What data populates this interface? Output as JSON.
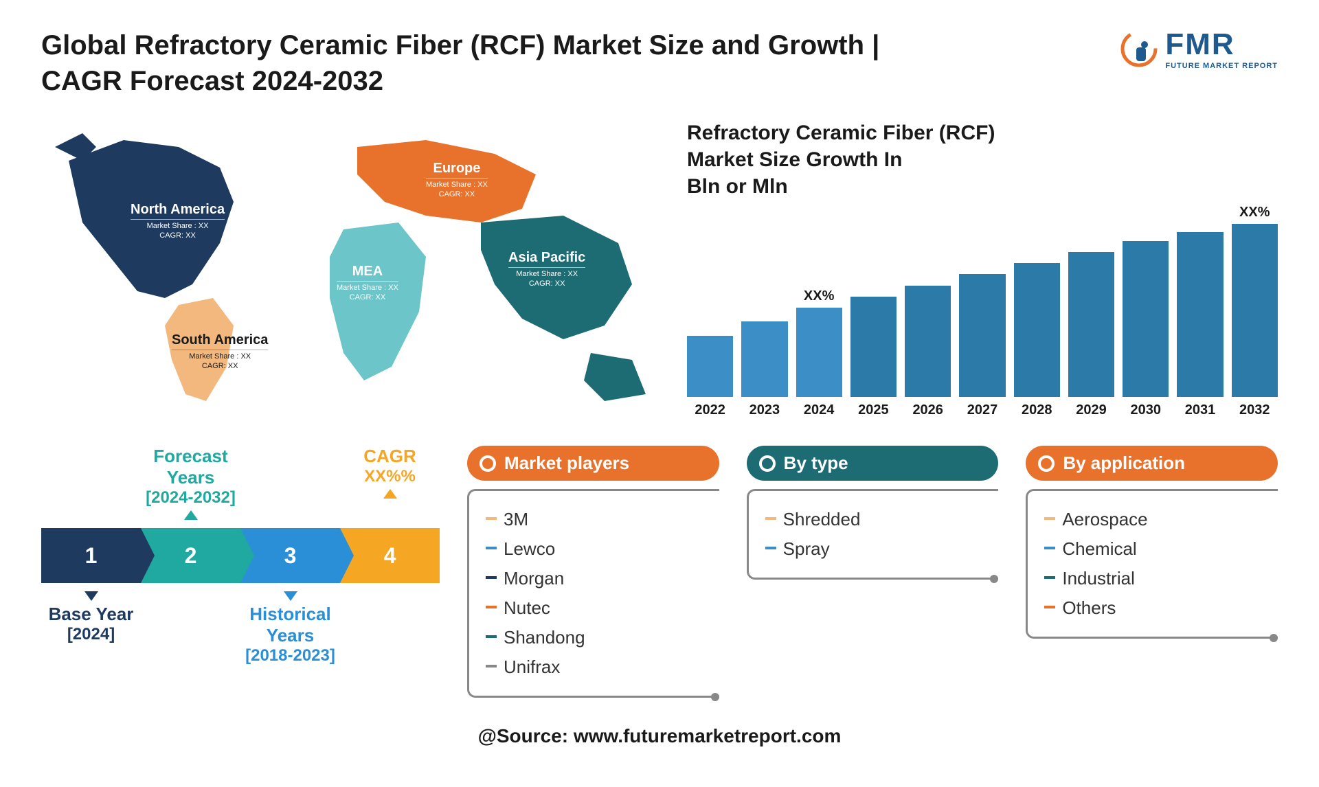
{
  "header": {
    "title": "Global Refractory Ceramic Fiber (RCF) Market Size and Growth | CAGR Forecast 2024-2032",
    "logo_main": "FMR",
    "logo_sub": "FUTURE MARKET REPORT"
  },
  "map": {
    "regions": {
      "north_america": {
        "name": "North America",
        "share": "Market Share : XX",
        "cagr": "CAGR: XX",
        "color": "#1e3a5f"
      },
      "south_america": {
        "name": "South America",
        "share": "Market Share : XX",
        "cagr": "CAGR: XX",
        "color": "#f2b87e"
      },
      "europe": {
        "name": "Europe",
        "share": "Market Share : XX",
        "cagr": "CAGR: XX",
        "color": "#e8722c"
      },
      "mea": {
        "name": "MEA",
        "share": "Market Share : XX",
        "cagr": "CAGR: XX",
        "color": "#6bc5c9"
      },
      "asia_pacific": {
        "name": "Asia Pacific",
        "share": "Market Share : XX",
        "cagr": "CAGR: XX",
        "color": "#1d6b73"
      }
    }
  },
  "chart": {
    "title_line1": "Refractory Ceramic Fiber (RCF)",
    "title_line2": "Market Size Growth In",
    "title_line3": "Bln or Mln",
    "title_fontsize": 30,
    "years": [
      "2022",
      "2023",
      "2024",
      "2025",
      "2026",
      "2027",
      "2028",
      "2029",
      "2030",
      "2031",
      "2032"
    ],
    "values": [
      110,
      135,
      160,
      180,
      200,
      220,
      240,
      260,
      280,
      295,
      310
    ],
    "max_value": 320,
    "colors": [
      "#3b8fc6",
      "#3b8fc6",
      "#3b8fc6",
      "#2b7aa8",
      "#2b7aa8",
      "#2b7aa8",
      "#2b7aa8",
      "#2b7aa8",
      "#2b7aa8",
      "#2b7aa8",
      "#2b7aa8"
    ],
    "label_top_2": "XX%",
    "label_top_10": "XX%",
    "year_fontsize": 20,
    "bar_gap": 12
  },
  "timeline": {
    "forecast_label": "Forecast Years",
    "forecast_range": "[2024-2032]",
    "forecast_color": "#1fa9a0",
    "cagr_label": "CAGR",
    "cagr_value": "XX%%",
    "cagr_color": "#f5a623",
    "base_label": "Base Year",
    "base_range": "[2024]",
    "base_color": "#1e3a5f",
    "historical_label": "Historical Years",
    "historical_range": "[2018-2023]",
    "historical_color": "#2a8fd6",
    "segments": [
      {
        "num": "1",
        "color": "#1e3a5f"
      },
      {
        "num": "2",
        "color": "#1fa9a0"
      },
      {
        "num": "3",
        "color": "#2a8fd6"
      },
      {
        "num": "4",
        "color": "#f5a623"
      }
    ]
  },
  "categories": {
    "market_players": {
      "header": "Market players",
      "header_color": "#e8722c",
      "items": [
        "3M",
        "Lewco",
        "Morgan",
        "Nutec",
        "Shandong",
        "Unifrax"
      ],
      "item_colors": [
        "#f2b87e",
        "#3b8fc6",
        "#1e3a5f",
        "#e8722c",
        "#1d6b73",
        "#888888"
      ]
    },
    "by_type": {
      "header": "By type",
      "header_color": "#1d6b73",
      "items": [
        "Shredded",
        "Spray"
      ],
      "item_colors": [
        "#f2b87e",
        "#3b8fc6"
      ]
    },
    "by_application": {
      "header": "By application",
      "header_color": "#e8722c",
      "items": [
        "Aerospace",
        "Chemical",
        "Industrial",
        "Others"
      ],
      "item_colors": [
        "#f2b87e",
        "#3b8fc6",
        "#1d6b73",
        "#e8722c"
      ]
    }
  },
  "source": "@Source: www.futuremarketreport.com"
}
